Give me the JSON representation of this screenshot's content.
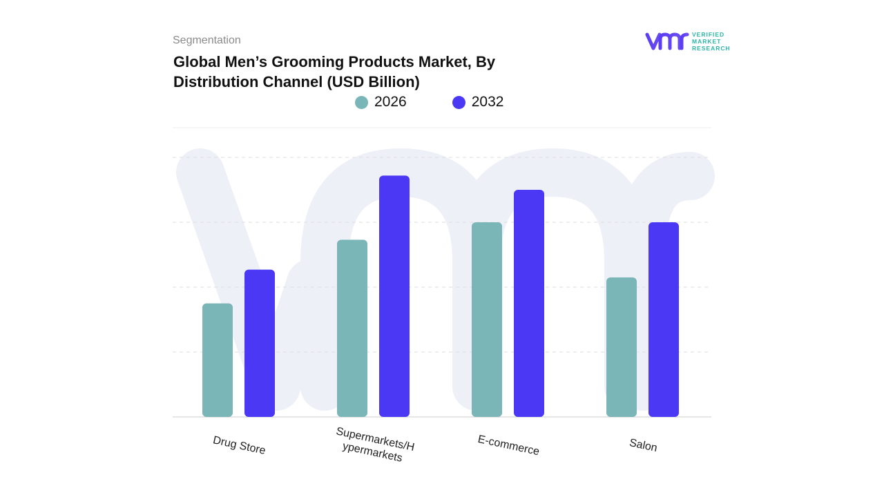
{
  "header": {
    "segment_label": "Segmentation",
    "title": "Global Men’s Grooming Products Market, By Distribution Channel (USD Billion)"
  },
  "brand": {
    "logo_text": "vmr",
    "logo_lines": [
      "VERIFIED",
      "MARKET",
      "RESEARCH"
    ]
  },
  "colors": {
    "series_2026": "#7ab5b8",
    "series_2032": "#4b38f5",
    "watermark": "#eef0f8",
    "grid": "#dedede"
  },
  "chart_data": {
    "type": "bar",
    "title": "Global Men’s Grooming Products Market, By Distribution Channel (USD Billion)",
    "xlabel": "",
    "ylabel": "",
    "categories": [
      "Drug Store",
      "Supermarkets/Hypermarkets",
      "E-commerce",
      "Salon"
    ],
    "category_display_lines": [
      [
        "Drug Store"
      ],
      [
        "Supermarkets/H",
        "ypermarkets"
      ],
      [
        "E-commerce"
      ],
      [
        "Salon"
      ]
    ],
    "series": [
      {
        "name": "2026",
        "values": [
          1.75,
          2.73,
          3.0,
          2.15
        ]
      },
      {
        "name": "2032",
        "values": [
          2.27,
          3.72,
          3.5,
          3.0
        ]
      }
    ],
    "ylim": [
      0,
      4
    ],
    "grid": true,
    "legend_position": "top-center"
  }
}
